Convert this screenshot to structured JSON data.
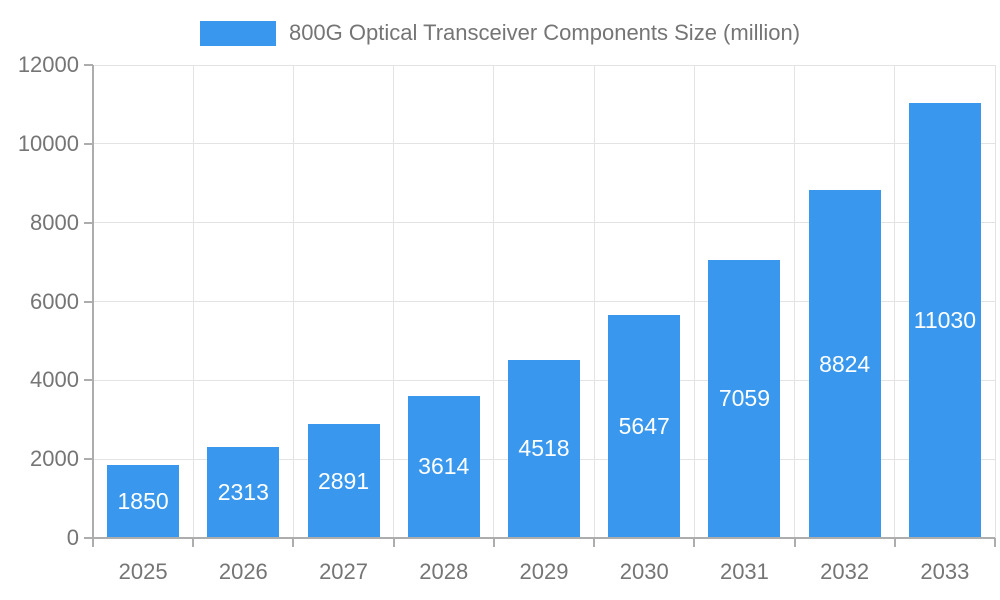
{
  "chart_data": {
    "type": "bar",
    "title": "800G Optical Transceiver Components Size (million)",
    "categories": [
      "2025",
      "2026",
      "2027",
      "2028",
      "2029",
      "2030",
      "2031",
      "2032",
      "2033"
    ],
    "values": [
      1850,
      2313,
      2891,
      3614,
      4518,
      5647,
      7059,
      8824,
      11030
    ],
    "xlabel": "",
    "ylabel": "",
    "ylim": [
      0,
      12000
    ],
    "yticks": [
      0,
      2000,
      4000,
      6000,
      8000,
      10000,
      12000
    ],
    "grid": "both",
    "legend_position": "top",
    "bar_labels_visible": true
  },
  "colors": {
    "bar": "#3998EE",
    "bar_label": "#FFFFFF",
    "axis_text": "#757575",
    "axis_line": "#ADADAD",
    "gridline": "#E3E3E3",
    "background": "#FFFFFF"
  }
}
